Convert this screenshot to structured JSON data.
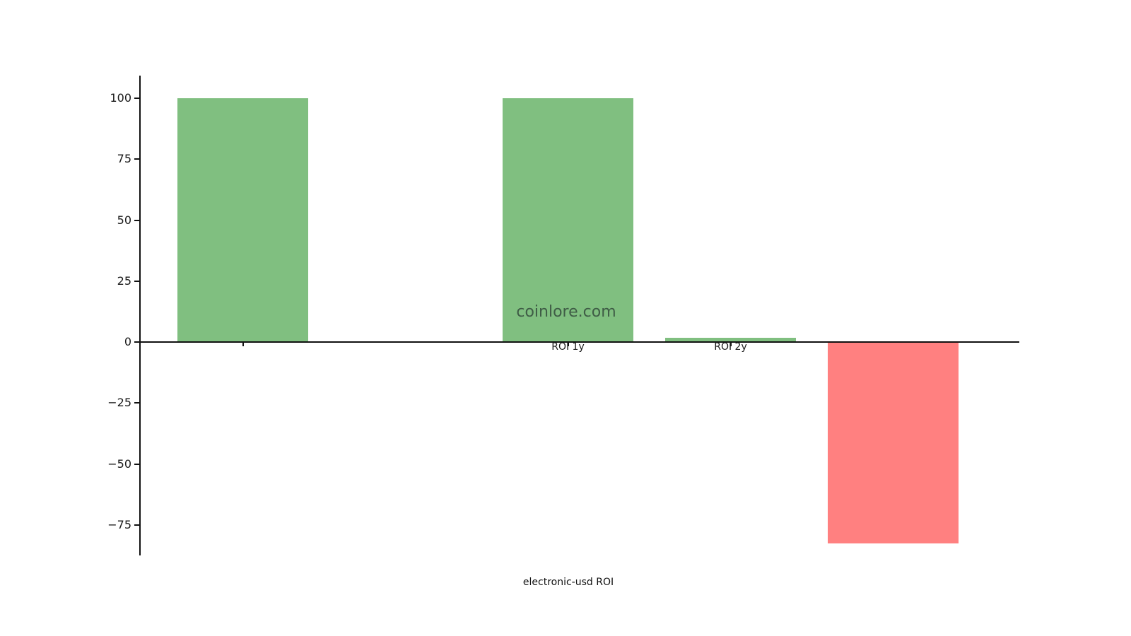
{
  "chart_data": {
    "type": "bar",
    "title": "electronic-usd ROI",
    "watermark": "coinlore.com",
    "xlabel": "",
    "ylabel": "",
    "grid": false,
    "legend": false,
    "ylim": [
      -87.5,
      109.5
    ],
    "y_ticks": [
      100,
      75,
      50,
      25,
      0,
      -25,
      -50,
      -75
    ],
    "x_ticks": [
      {
        "position": 0,
        "label": ""
      },
      {
        "position": 2,
        "label": "ROI 1y"
      },
      {
        "position": 3,
        "label": "ROI 2y"
      }
    ],
    "bars": [
      {
        "position": 0,
        "label": "",
        "value": 100,
        "color": "#80bf80"
      },
      {
        "position": 2,
        "label": "ROI 1y",
        "value": 100,
        "color": "#80bf80"
      },
      {
        "position": 3,
        "label": "ROI 2y",
        "value": 1.8,
        "color": "#80bf80"
      },
      {
        "position": 4,
        "label": "",
        "value": -82.6,
        "color": "#ff8080"
      }
    ],
    "colors": {
      "positive": "#80bf80",
      "negative": "#ff8080",
      "axis": "#111111",
      "tick_text": "#1a1a1a",
      "watermark_text": "#3f5c46"
    }
  }
}
